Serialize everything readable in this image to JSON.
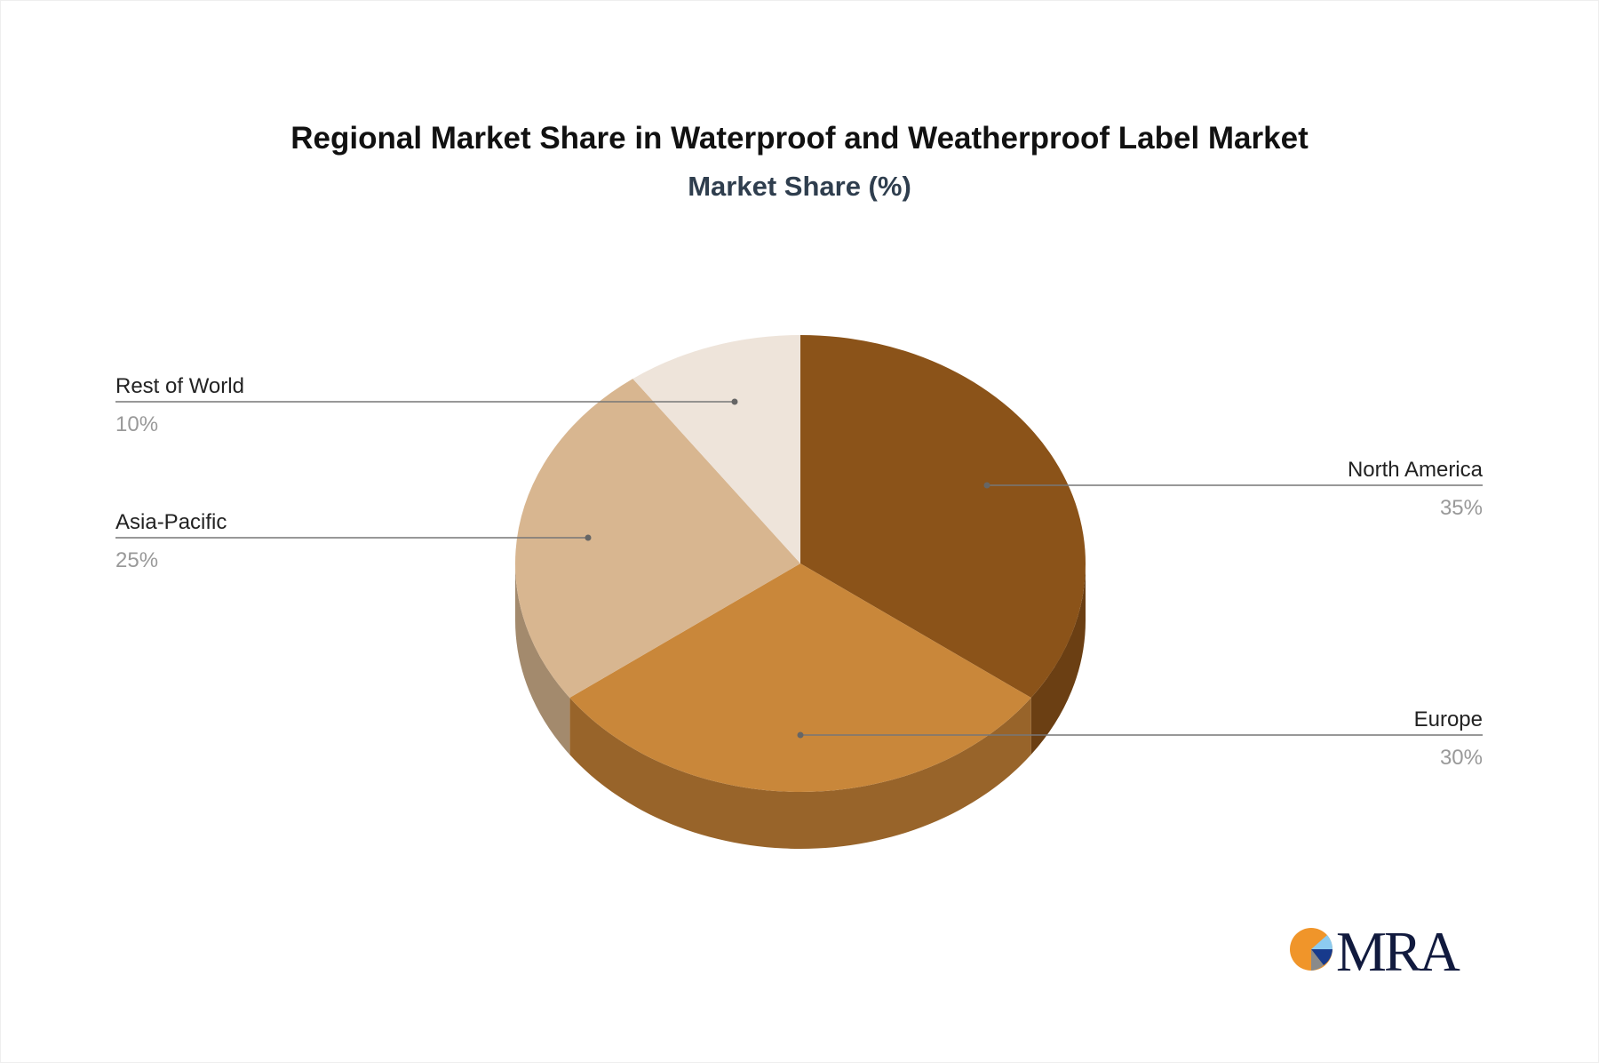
{
  "chart_data": {
    "type": "pie",
    "style": "3d",
    "title": "Regional Market Share in Waterproof and Weatherproof Label Market",
    "subtitle": "Market Share (%)",
    "categories": [
      "North America",
      "Europe",
      "Asia-Pacific",
      "Rest of World"
    ],
    "values": [
      35,
      30,
      25,
      10
    ],
    "labels": [
      "35%",
      "30%",
      "25%",
      "10%"
    ],
    "colors": [
      "#8B5319",
      "#C9873A",
      "#D8B690",
      "#EEE4DA"
    ],
    "side_colors": [
      "#6B3F13",
      "#98642A",
      "#A38A6D",
      "#C9BFB4"
    ]
  },
  "logo": {
    "text": "MRA",
    "colors": [
      "#F0952A",
      "#8CCBF0",
      "#173A8C",
      "#8A8A8A"
    ]
  }
}
